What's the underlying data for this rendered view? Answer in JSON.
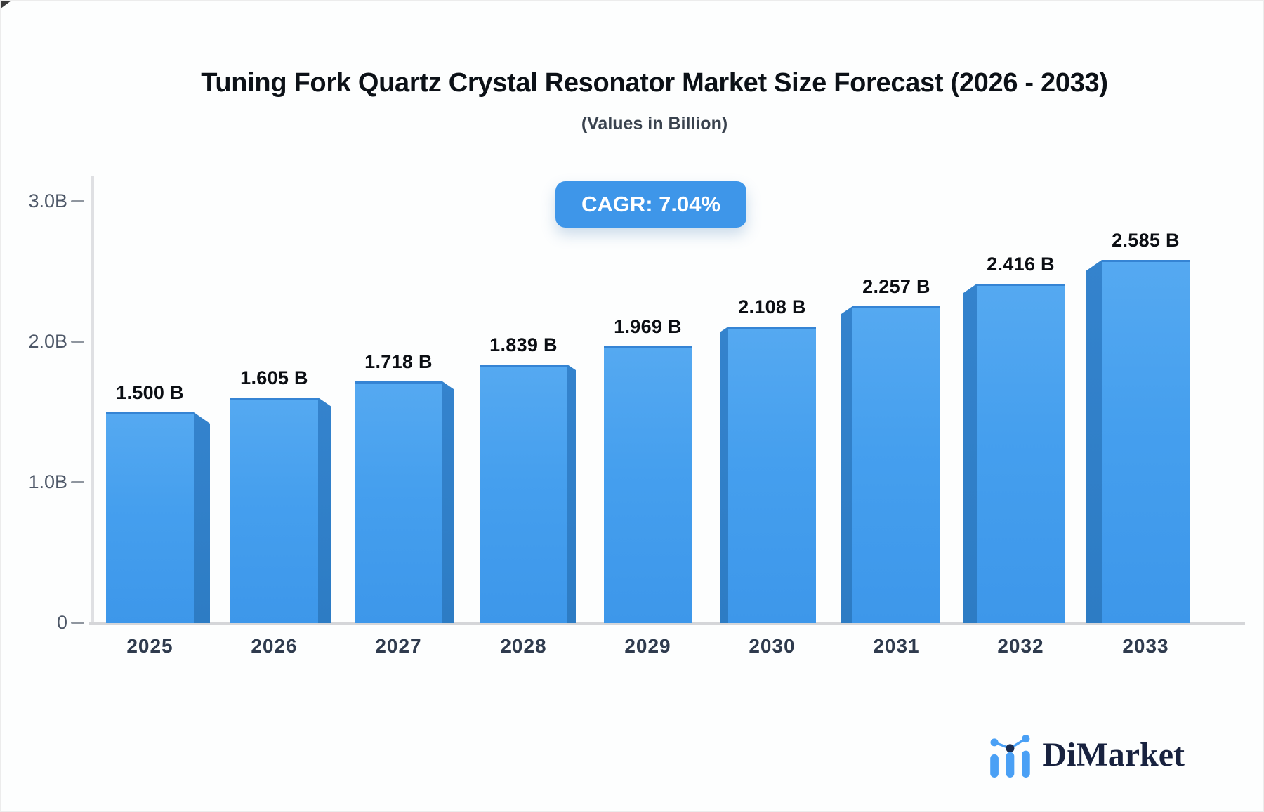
{
  "header": {
    "title": "Tuning Fork Quartz Crystal Resonator Market Size Forecast (2026 - 2033)",
    "subtitle": "(Values in Billion)",
    "cagr_badge": "CAGR: 7.04%"
  },
  "chart_data": {
    "type": "bar",
    "title": "Tuning Fork Quartz Crystal Resonator Market Size Forecast (2026 - 2033)",
    "subtitle": "(Values in Billion)",
    "unit": "Billion",
    "cagr": "7.04%",
    "categories": [
      "2025",
      "2026",
      "2027",
      "2028",
      "2029",
      "2030",
      "2031",
      "2032",
      "2033"
    ],
    "values": [
      1.5,
      1.605,
      1.718,
      1.839,
      1.969,
      2.108,
      2.257,
      2.416,
      2.585
    ],
    "value_labels": [
      "1.500 B",
      "1.605 B",
      "1.718 B",
      "1.839 B",
      "1.969 B",
      "2.108 B",
      "2.257 B",
      "2.416 B",
      "2.585 B"
    ],
    "ylim": [
      0,
      3
    ],
    "yticks": [
      {
        "value": 3,
        "label": "3.0B"
      },
      {
        "value": 2,
        "label": "2.0B"
      },
      {
        "value": 1,
        "label": "1.0B"
      },
      {
        "value": 0,
        "label": "0"
      }
    ],
    "grid": false,
    "legend": false,
    "colors": {
      "bar_front": "#459FEE",
      "bar_side": "#2D7CC4",
      "badge": "#3E96E9",
      "axis": "#D5D6D9",
      "value_label": "#0B0E13",
      "category_label": "#2F3B4E",
      "ytick_label": "#4E5868"
    }
  },
  "branding": {
    "logo_text": "DiMarket",
    "logo_icon": "bar-chart-sparkline-icon",
    "logo_blue": "#4AA0F5",
    "logo_navy": "#1B2B4D"
  }
}
